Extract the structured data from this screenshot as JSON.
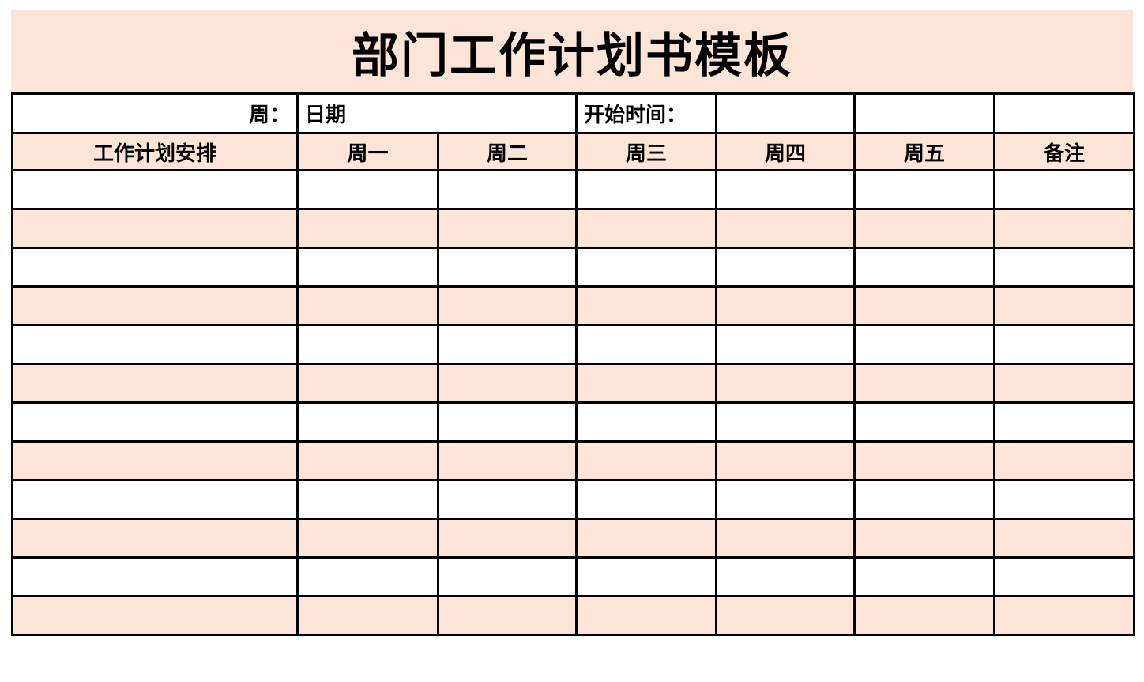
{
  "title": "部门工作计划书模板",
  "colors": {
    "accent_peach": "#FCE4D6",
    "border": "#000000",
    "text": "#000000",
    "page_background": "#FFFFFF"
  },
  "info_row": {
    "week_label": "周：",
    "date_label": "日期",
    "start_time_label": "开始时间：",
    "empty_values": [
      "",
      "",
      ""
    ]
  },
  "table": {
    "column_headers": [
      "工作计划安排",
      "周一",
      "周二",
      "周三",
      "周四",
      "周五",
      "备注"
    ],
    "empty_row_count": 12
  }
}
